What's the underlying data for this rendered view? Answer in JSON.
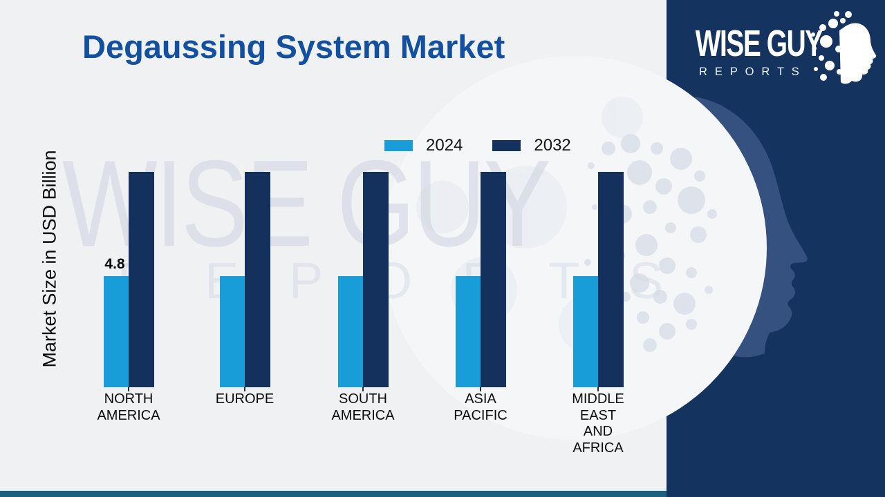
{
  "title": {
    "text": "Degaussing System Market",
    "color": "#1450a0"
  },
  "y_axis": {
    "label": "Market Size in USD Billion"
  },
  "legend": {
    "position": "top-center",
    "items": [
      {
        "label": "2024",
        "color": "#189dd9"
      },
      {
        "label": "2032",
        "color": "#14315e"
      }
    ]
  },
  "annotation": {
    "first_bar_value": "4.8"
  },
  "watermark": {
    "line1": "WISE GUY",
    "line2": "R E P O R T S"
  },
  "logo": {
    "line1": "WISE GUY",
    "line2": "R E P O R T S"
  },
  "footer": {
    "bar_color": "#19617f"
  },
  "background": {
    "page": "#f0f1f2",
    "panel_navy": "#15335f",
    "face_silhouette": "#35517f",
    "circle": "#f5f6f8"
  },
  "chart_data": {
    "type": "bar",
    "title": "Degaussing System Market",
    "xlabel": "",
    "ylabel": "Market Size in USD Billion",
    "categories": [
      "NORTH AMERICA",
      "EUROPE",
      "SOUTH AMERICA",
      "ASIA PACIFIC",
      "MIDDLE EAST AND AFRICA"
    ],
    "categories_display": [
      "NORTH\nAMERICA",
      "EUROPE",
      "SOUTH\nAMERICA",
      "ASIA\nPACIFIC",
      "MIDDLE\nEAST\nAND\nAFRICA"
    ],
    "series": [
      {
        "name": "2024",
        "color": "#189dd9",
        "values": [
          4.8,
          4.8,
          4.8,
          4.8,
          4.8
        ]
      },
      {
        "name": "2032",
        "color": "#14315e",
        "values": [
          9.3,
          9.3,
          9.3,
          9.3,
          9.3
        ]
      }
    ],
    "data_labels": [
      {
        "category": "NORTH AMERICA",
        "series": "2024",
        "value": "4.8"
      }
    ],
    "legend_position": "top",
    "grid": false,
    "y_axis_ticks_visible": false,
    "ylim": [
      0,
      10
    ]
  }
}
